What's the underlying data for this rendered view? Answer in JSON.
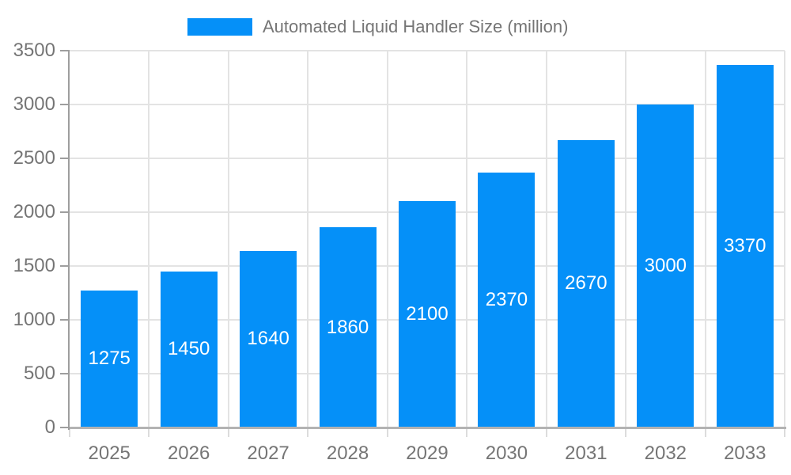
{
  "legend": {
    "label": "Automated Liquid Handler Size (million)"
  },
  "colors": {
    "bar": "#0590f8",
    "bar_label": "#ffffff",
    "grid": "#e3e3e3",
    "axis": "#9e9e9e",
    "baseline": "#b3b3b3",
    "tick": "#dcdcdc",
    "text": "#757575",
    "background": "#ffffff"
  },
  "chart_data": {
    "type": "bar",
    "title": "Automated Liquid Handler Size (million)",
    "categories": [
      "2025",
      "2026",
      "2027",
      "2028",
      "2029",
      "2030",
      "2031",
      "2032",
      "2033"
    ],
    "values": [
      1275,
      1450,
      1640,
      1860,
      2100,
      2370,
      2670,
      3000,
      3370
    ],
    "series_name": "Automated Liquid Handler Size (million)",
    "xlabel": "",
    "ylabel": "",
    "ylim": [
      0,
      3500
    ],
    "ytick_step": 500,
    "yticks": [
      0,
      500,
      1000,
      1500,
      2000,
      2500,
      3000,
      3500
    ],
    "grid": true,
    "legend_position": "top",
    "value_labels": "inside-center"
  }
}
